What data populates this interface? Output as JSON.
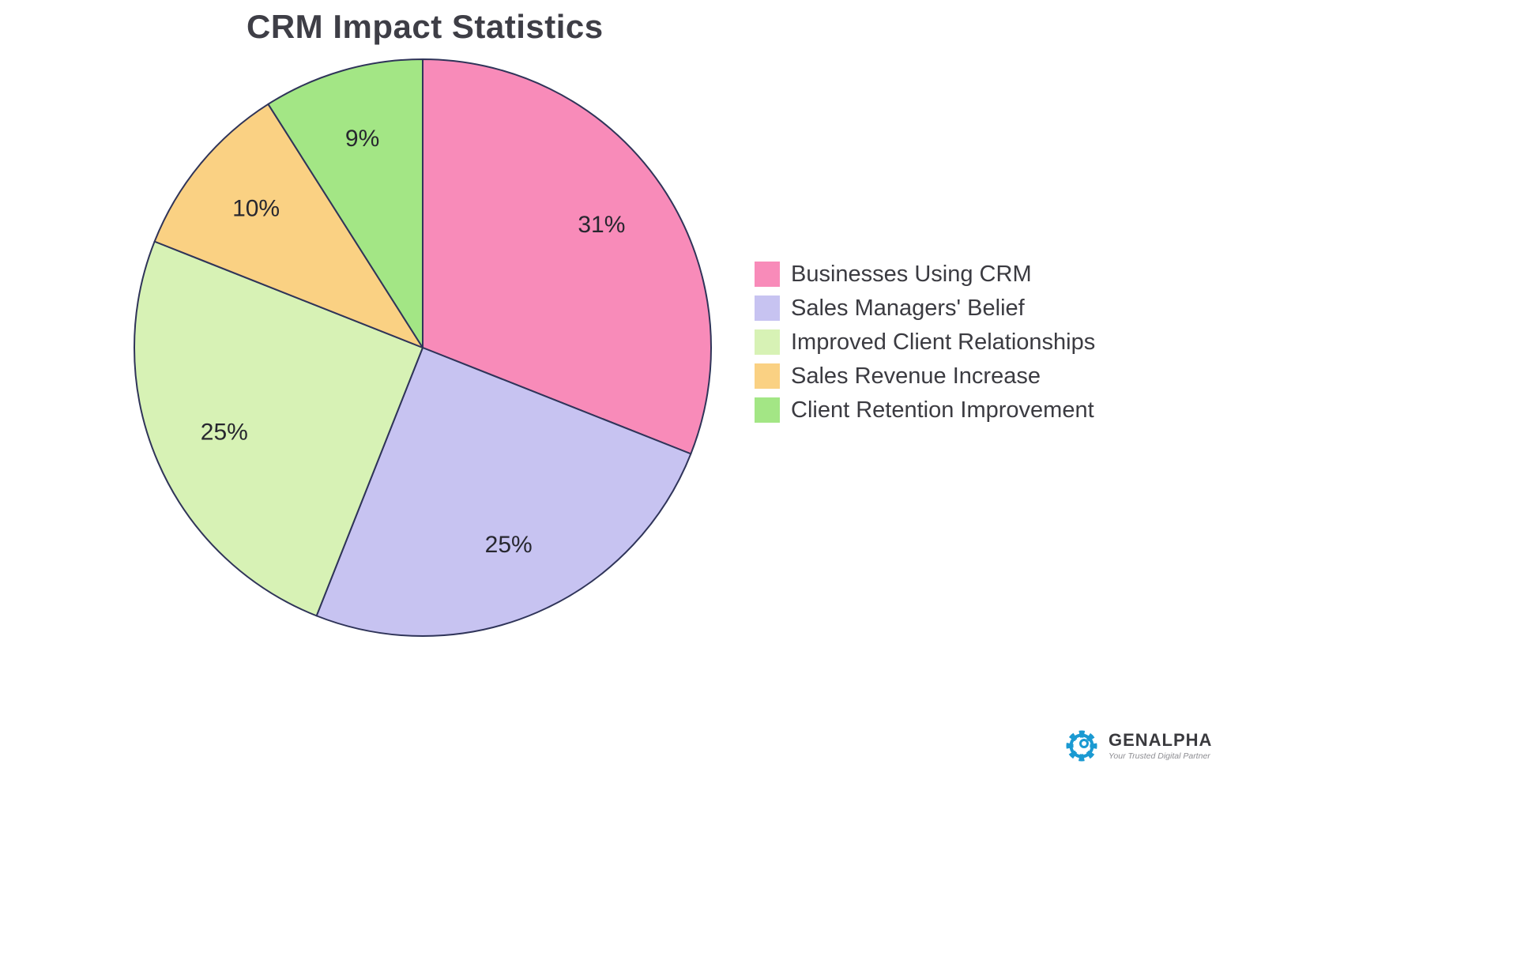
{
  "title": "CRM Impact Statistics",
  "chart_data": {
    "type": "pie",
    "title": "CRM Impact Statistics",
    "start_angle_deg": -90,
    "direction": "clockwise",
    "stroke_color": "#2F3459",
    "stroke_width": 2,
    "legend_position": "right",
    "slices": [
      {
        "label": "Businesses Using CRM",
        "value": 31,
        "percent_label": "31%",
        "color": "#F88BB9"
      },
      {
        "label": "Sales Managers' Belief",
        "value": 25,
        "percent_label": "25%",
        "color": "#C7C3F1"
      },
      {
        "label": "Improved Client Relationships",
        "value": 25,
        "percent_label": "25%",
        "color": "#D7F2B5"
      },
      {
        "label": "Sales Revenue Increase",
        "value": 10,
        "percent_label": "10%",
        "color": "#FAD183"
      },
      {
        "label": "Client Retention Improvement",
        "value": 9,
        "percent_label": "9%",
        "color": "#A3E685"
      }
    ]
  },
  "logo": {
    "name": "GENALPHA",
    "tagline": "Your Trusted Digital Partner",
    "accent_color": "#1B9AD2"
  }
}
